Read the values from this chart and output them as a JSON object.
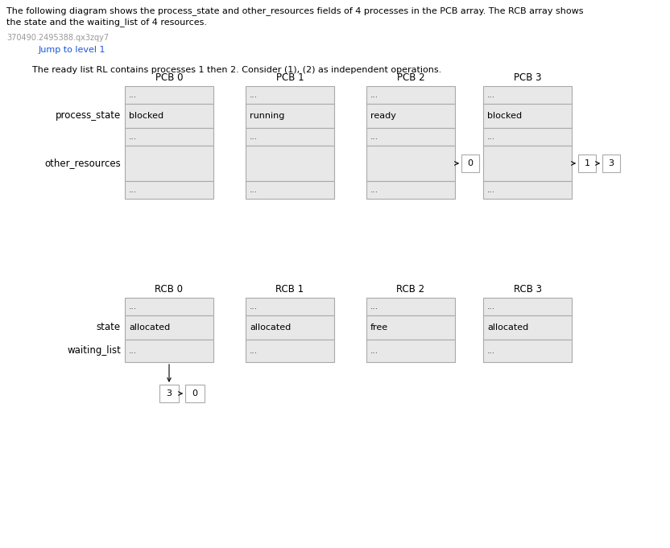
{
  "title_line1": "The following diagram shows the process_state and other_resources fields of 4 processes in the PCB array. The RCB array shows",
  "title_line2": "the state and the waiting_list of 4 resources.",
  "subtitle": "370490.2495388.qx3zqy7",
  "jump_text": "Jump to level 1",
  "ready_list_text": "The ready list RL contains processes 1 then 2. Consider (1), (2) as independent operations.",
  "pcb_labels": [
    "PCB 0",
    "PCB 1",
    "PCB 2",
    "PCB 3"
  ],
  "rcb_labels": [
    "RCB 0",
    "RCB 1",
    "RCB 2",
    "RCB 3"
  ],
  "pcb_states": [
    "blocked",
    "running",
    "ready",
    "blocked"
  ],
  "rcb_states": [
    "allocated",
    "allocated",
    "free",
    "allocated"
  ],
  "bg_color": "#ffffff",
  "box_fill": "#e8e8e8",
  "box_edge": "#aaaaaa",
  "text_color": "#000000",
  "link_color": "#1a56db",
  "subtitle_color": "#999999",
  "dots_color": "#444444"
}
